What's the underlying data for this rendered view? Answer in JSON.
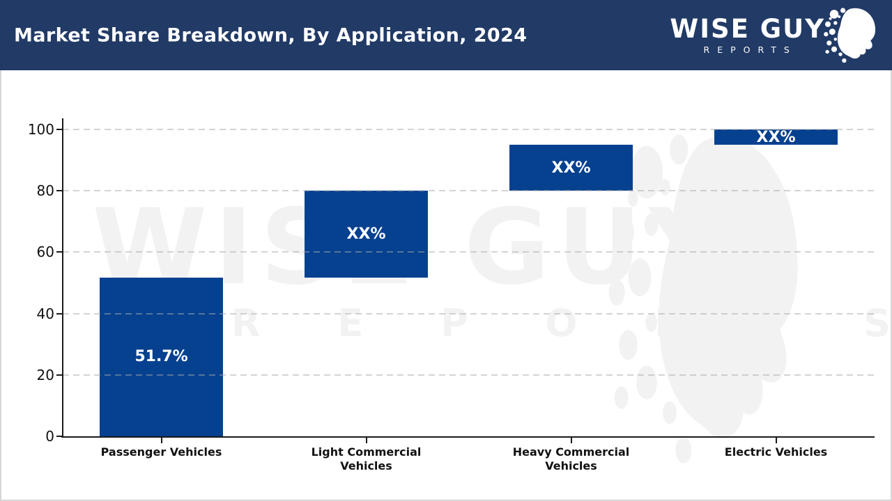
{
  "header": {
    "title": "Market Share Breakdown, By Application, 2024",
    "logo": {
      "line1": "WISE GUY",
      "line2": "REPORTS"
    }
  },
  "watermark": {
    "line1": "WISE GUY",
    "line2": "REPORTS"
  },
  "colors": {
    "header_bg": "#213a66",
    "bar": "#06418f",
    "bar_label": "#ffffff",
    "axis": "#1a1a1a",
    "gridline": "#d9d9d9",
    "watermark": "#f2f2f2"
  },
  "chart_data": {
    "type": "bar",
    "subtype": "waterfall",
    "title": "Market Share Breakdown, By Application, 2024",
    "xlabel": "",
    "ylabel": "",
    "categories": [
      "Passenger Vehicles",
      "Light Commercial Vehicles",
      "Heavy Commercial Vehicles",
      "Electric Vehicles"
    ],
    "category_label_lines": [
      [
        "Passenger Vehicles"
      ],
      [
        "Light Commercial",
        "Vehicles"
      ],
      [
        "Heavy Commercial",
        "Vehicles"
      ],
      [
        "Electric Vehicles"
      ]
    ],
    "segments": [
      {
        "category": "Passenger Vehicles",
        "start": 0,
        "end": 51.7,
        "label": "51.7%"
      },
      {
        "category": "Light Commercial Vehicles",
        "start": 51.7,
        "end": 80,
        "label": "XX%"
      },
      {
        "category": "Heavy Commercial Vehicles",
        "start": 80,
        "end": 95,
        "label": "XX%"
      },
      {
        "category": "Electric Vehicles",
        "start": 95,
        "end": 100,
        "label": "XX%"
      }
    ],
    "yticks": [
      0,
      20,
      40,
      60,
      80,
      100
    ],
    "ylim": [
      0,
      104
    ],
    "grid": "horizontal-dashed",
    "legend": "none",
    "bar_color": "#06418f",
    "label_color": "#ffffff"
  }
}
